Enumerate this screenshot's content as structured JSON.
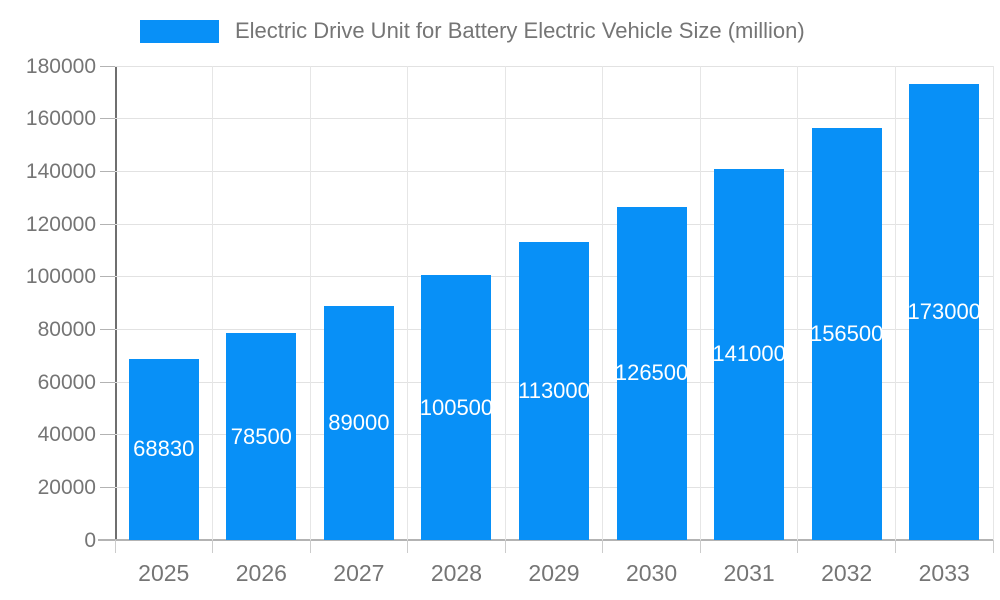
{
  "legend": {
    "label": "Electric Drive Unit for Battery Electric Vehicle Size (million)"
  },
  "chart_data": {
    "type": "bar",
    "title": "Electric Drive Unit for Battery Electric Vehicle Size (million)",
    "categories": [
      "2025",
      "2026",
      "2027",
      "2028",
      "2029",
      "2030",
      "2031",
      "2032",
      "2033"
    ],
    "values": [
      68830,
      78500,
      89000,
      100500,
      113000,
      126500,
      141000,
      156500,
      173000
    ],
    "value_labels": [
      "68830",
      "78500",
      "89000",
      "100500",
      "113000",
      "126500",
      "141000",
      "156500",
      "173000"
    ],
    "xlabel": "",
    "ylabel": "",
    "ylim": [
      0,
      180000
    ],
    "yticks": [
      0,
      20000,
      40000,
      60000,
      80000,
      100000,
      120000,
      140000,
      160000,
      180000
    ],
    "grid": true,
    "legend_position": "top",
    "bar_color": "#0890f7",
    "bar_label_color": "#ffffff",
    "axis_text_color": "#757575",
    "gridline_color": "#e2e2e2"
  }
}
